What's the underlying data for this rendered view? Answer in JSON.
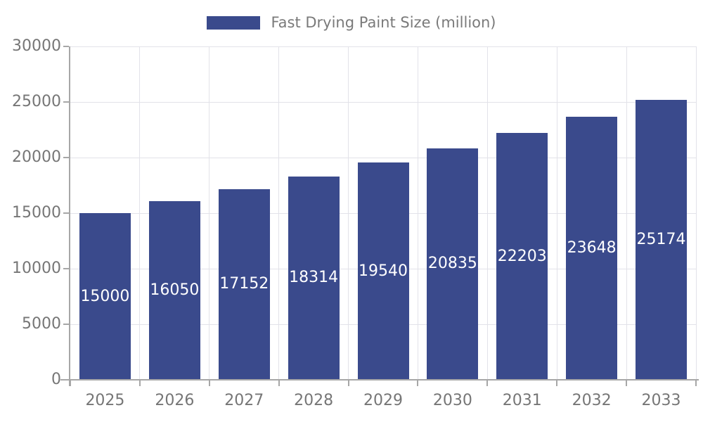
{
  "chart_data": {
    "type": "bar",
    "title": "Fast Drying Paint Size (million)",
    "legend": {
      "label": "Fast Drying Paint Size (million)",
      "position": "top-center"
    },
    "categories": [
      "2025",
      "2026",
      "2027",
      "2028",
      "2029",
      "2030",
      "2031",
      "2032",
      "2033"
    ],
    "series": [
      {
        "name": "Fast Drying Paint Size (million)",
        "values": [
          15000,
          16050,
          17152,
          18314,
          19540,
          20835,
          22203,
          23648,
          25174
        ]
      }
    ],
    "value_labels": [
      "15000",
      "16050",
      "17152",
      "18314",
      "19540",
      "20835",
      "22203",
      "23648",
      "25174"
    ],
    "xlabel": "",
    "ylabel": "",
    "ylim": [
      0,
      30000
    ],
    "ytick_step": 5000,
    "ytick_labels": [
      "0",
      "5000",
      "10000",
      "15000",
      "20000",
      "25000",
      "30000"
    ],
    "grid": true,
    "value_labels_position": "inside-center",
    "colors": {
      "bar": "#3A4A8C",
      "axis_line": "#A7A7A7",
      "gridline": "#E2E2E9",
      "axis_label": "#767676",
      "legend_text": "#7A7A7A",
      "value_label": "#FFFFFF"
    }
  }
}
